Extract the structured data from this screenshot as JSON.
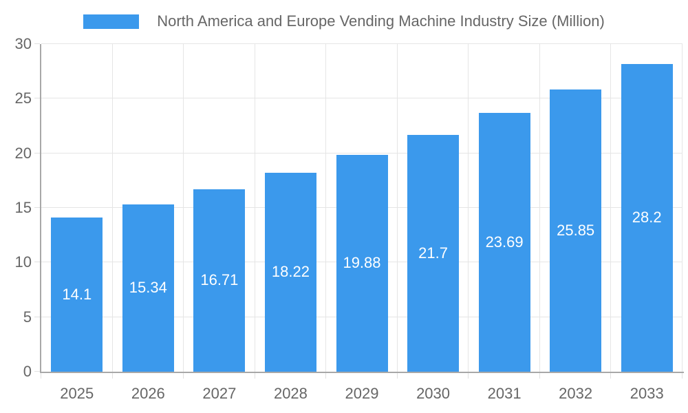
{
  "chart_data": {
    "type": "bar",
    "title": "North America and Europe Vending Machine Industry Size (Million)",
    "legend_label": "North America and Europe Vending Machine Industry Size (Million)",
    "categories": [
      "2025",
      "2026",
      "2027",
      "2028",
      "2029",
      "2030",
      "2031",
      "2032",
      "2033"
    ],
    "values": [
      14.1,
      15.34,
      16.71,
      18.22,
      19.88,
      21.7,
      23.69,
      25.85,
      28.2
    ],
    "value_labels": [
      "14.1",
      "15.34",
      "16.71",
      "18.22",
      "19.88",
      "21.7",
      "23.69",
      "25.85",
      "28.2"
    ],
    "xlabel": "",
    "ylabel": "",
    "ylim": [
      0,
      30
    ],
    "yticks": [
      0,
      5,
      10,
      15,
      20,
      25,
      30
    ],
    "grid": "horizontal-and-vertical",
    "legend_position": "top-center",
    "value_label_position": "inside-center",
    "colors": {
      "bar": "#3B99EC",
      "grid_line": "#E5E5E5",
      "tick_mark": "#E0E0E0",
      "axis_line": "#A8A8A8",
      "tick_text": "#666666",
      "legend_text": "#666666",
      "value_label_text": "#FFFFFF",
      "background": "#FFFFFF"
    }
  }
}
